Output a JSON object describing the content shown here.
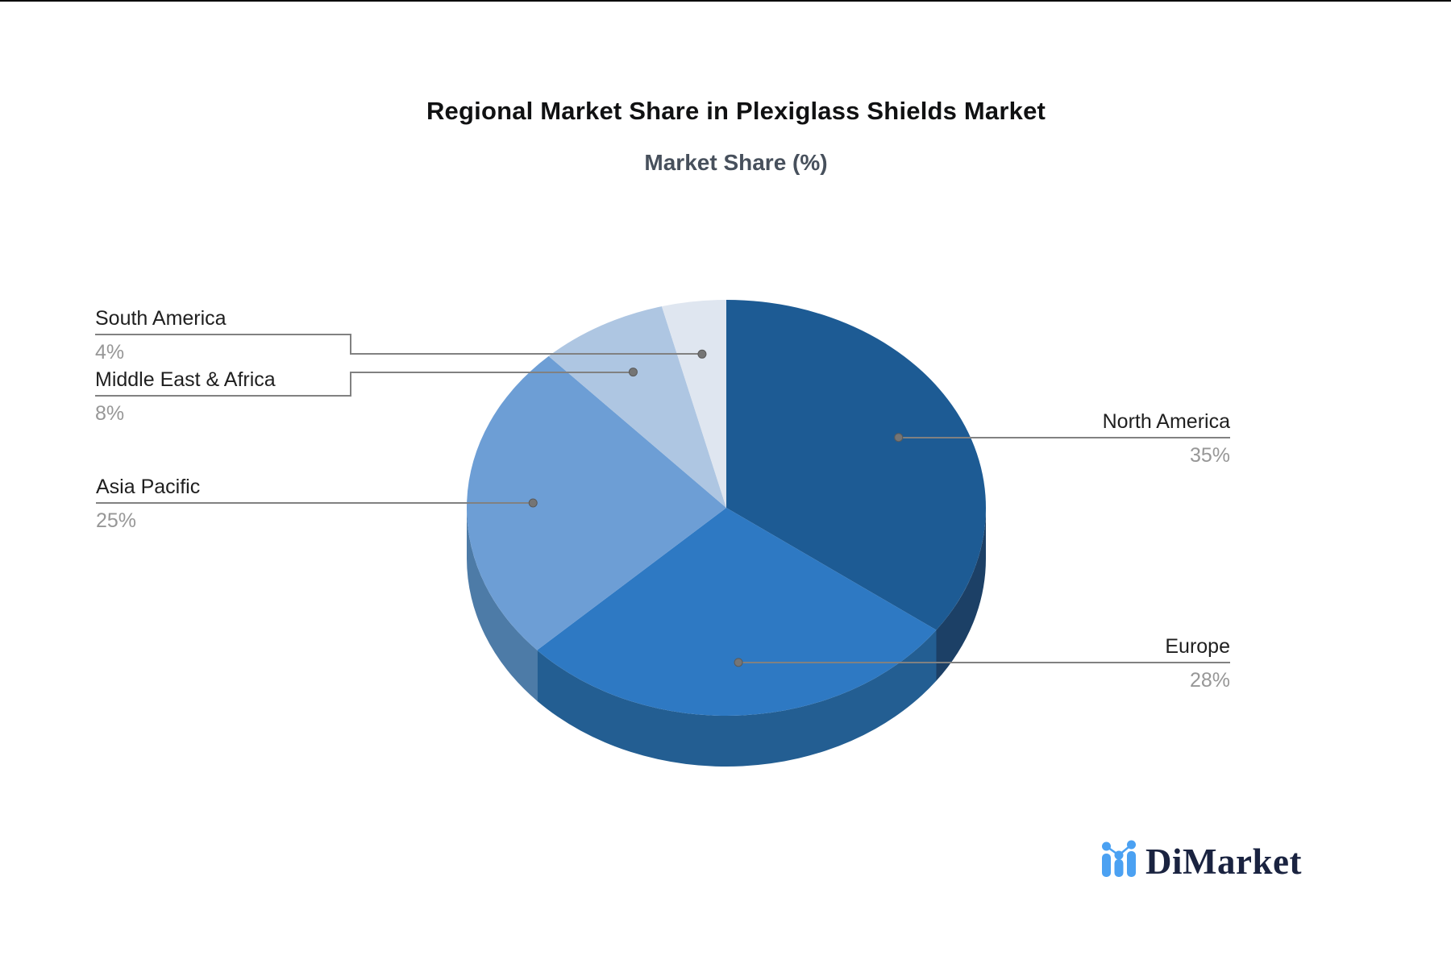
{
  "title": "Regional Market Share in Plexiglass Shields Market",
  "subtitle": "Market Share (%)",
  "chart_data": {
    "type": "pie",
    "title": "Regional Market Share in Plexiglass Shields Market",
    "subtitle": "Market Share (%)",
    "effect": "3d",
    "direction": "clockwise",
    "start_angle_deg": 0,
    "legend_position": "callout-labels",
    "slices": [
      {
        "label": "North America",
        "value": 35,
        "display": "35%",
        "color": "#1d5b94",
        "side_color": "#1c4066"
      },
      {
        "label": "Europe",
        "value": 28,
        "display": "28%",
        "color": "#2e79c3",
        "side_color": "#235e92"
      },
      {
        "label": "Asia Pacific",
        "value": 25,
        "display": "25%",
        "color": "#6d9ed5",
        "side_color": "#4d7ba7"
      },
      {
        "label": "Middle East & Africa",
        "value": 8,
        "display": "8%",
        "color": "#aec6e2",
        "side_color": "#8aa8c6"
      },
      {
        "label": "South America",
        "value": 4,
        "display": "4%",
        "color": "#dfe6f0",
        "side_color": "#b9c5d6"
      }
    ]
  },
  "branding": {
    "logo_text": "DiMarket",
    "logo_icon": "bar-chart-trend-icon",
    "logo_icon_color": "#4ba1f2",
    "logo_text_color": "#1a2340"
  },
  "colors": {
    "background": "#ffffff",
    "connector_line": "#818181",
    "callout_label": "#1f1f1f",
    "callout_value": "#979797",
    "title": "#101112",
    "subtitle": "#47505c",
    "top_border": "#0b0b0b"
  }
}
